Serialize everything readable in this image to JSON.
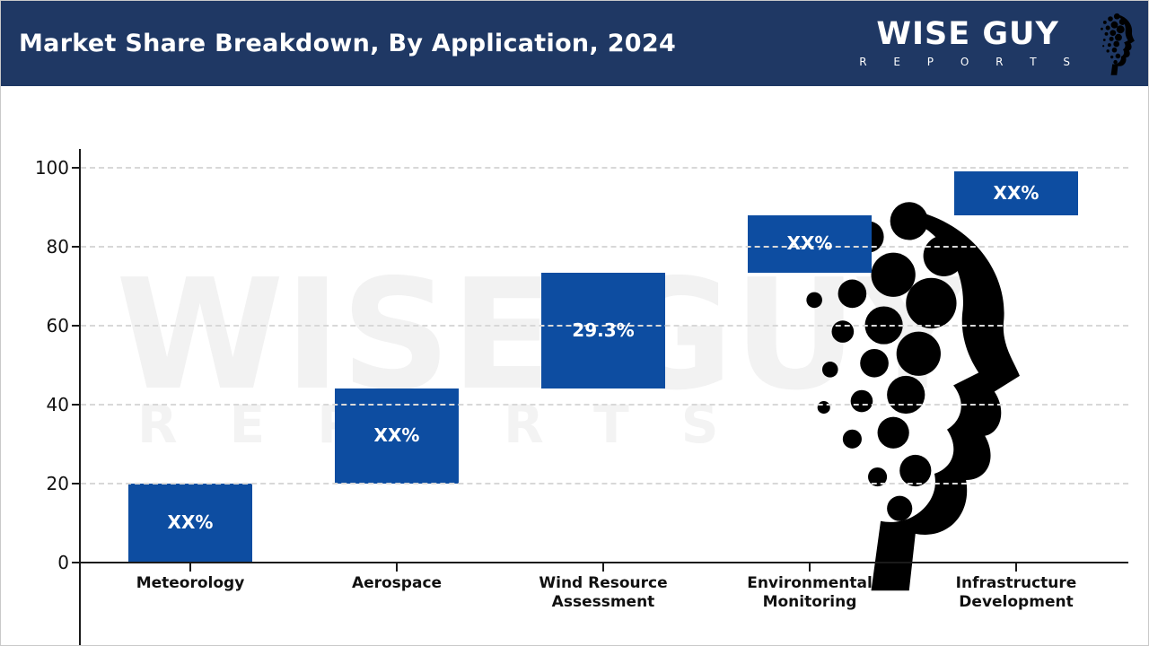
{
  "header": {
    "title": "Market Share Breakdown, By Application, 2024",
    "logo": {
      "line1": "WISE GUY",
      "line2": "R E P O R T S"
    }
  },
  "watermark": {
    "line1": "WISE GUY",
    "line2": "REPORTS"
  },
  "colors": {
    "header_bg": "#1f3864",
    "bar": "#0d4da1",
    "gridline": "#d8d8d8",
    "axis": "#1a1a1a",
    "watermark": "#f2f2f2"
  },
  "chart_data": {
    "type": "bar",
    "subtype": "waterfall",
    "title": "Market Share Breakdown, By Application, 2024",
    "categories": [
      "Meteorology",
      "Aerospace",
      "Wind Resource\nAssessment",
      "Environmental\nMonitoring",
      "Infrastructure\nDevelopment"
    ],
    "bases": [
      0,
      20,
      44,
      73.3,
      88
    ],
    "values": [
      20,
      24,
      29.3,
      14.7,
      11
    ],
    "bar_labels": [
      "XX%",
      "XX%",
      "29.3%",
      "XX%",
      "XX%"
    ],
    "yticks": [
      0,
      20,
      40,
      60,
      80,
      100
    ],
    "ylim": [
      0,
      105
    ],
    "xlabel": "",
    "ylabel": "",
    "grid": "horizontal-dashed",
    "legend": "none"
  }
}
